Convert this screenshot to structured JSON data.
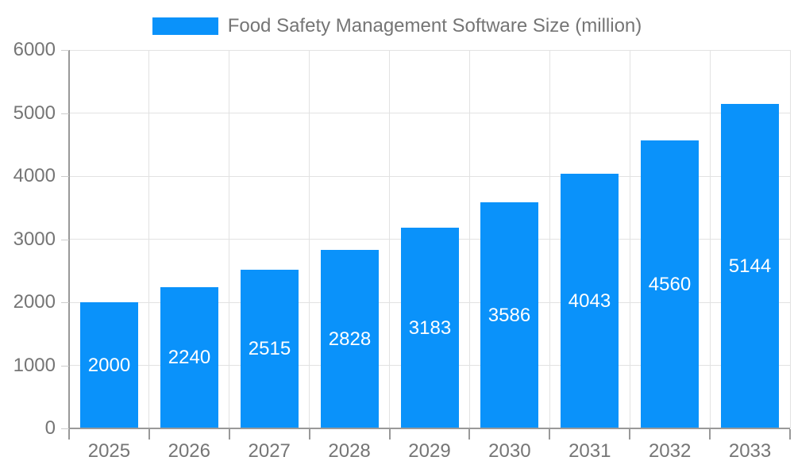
{
  "chart_data": {
    "type": "bar",
    "title": "Food Safety Management Software Size (million)",
    "categories": [
      "2025",
      "2026",
      "2027",
      "2028",
      "2029",
      "2030",
      "2031",
      "2032",
      "2033"
    ],
    "values": [
      2000,
      2240,
      2515,
      2828,
      3183,
      3586,
      4043,
      4560,
      5144
    ],
    "xlabel": "",
    "ylabel": "",
    "ylim": [
      0,
      6000
    ],
    "yticks": [
      0,
      1000,
      2000,
      3000,
      4000,
      5000,
      6000
    ],
    "grid": true,
    "legend_position": "top-center",
    "bar_label_position": "inside-center",
    "colors": {
      "bar": "#0a92fa",
      "bar_label": "#ffffff",
      "axis_text": "#757575",
      "grid_line": "#e2e2e2",
      "axis_line": "#999999"
    }
  }
}
